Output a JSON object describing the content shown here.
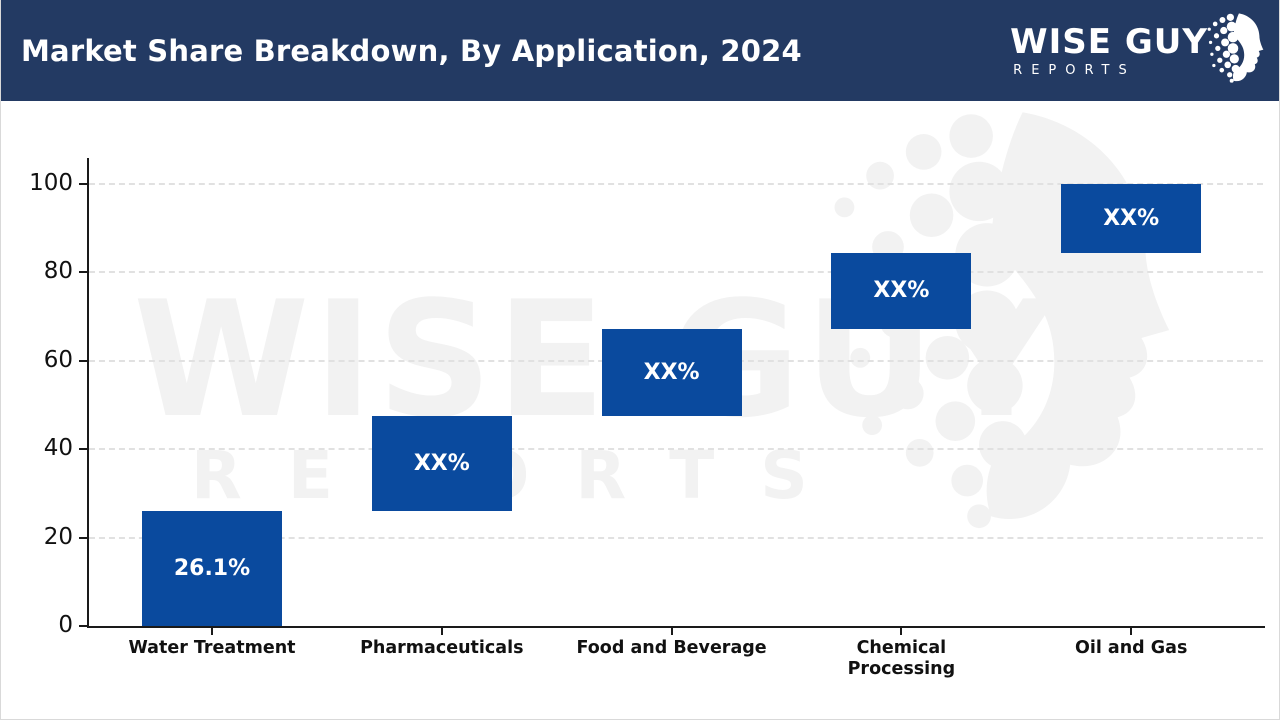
{
  "header": {
    "title": "Market Share Breakdown, By Application, 2024",
    "logo": {
      "line1": "WISE GUY",
      "line2": "REPORTS"
    }
  },
  "watermark": {
    "line1": "WISE GUY",
    "line2": "REPORTS"
  },
  "chart_data": {
    "type": "bar",
    "subtype": "waterfall-floating-segments",
    "title": "Market Share Breakdown, By Application, 2024",
    "categories": [
      "Water Treatment",
      "Pharmaceuticals",
      "Food and Beverage",
      "Chemical Processing",
      "Oil and Gas"
    ],
    "segments": [
      {
        "category": "Water Treatment",
        "start": 0,
        "end": 26.1,
        "label": "26.1%",
        "wrap": false
      },
      {
        "category": "Pharmaceuticals",
        "start": 26.1,
        "end": 47.5,
        "label": "XX%",
        "wrap": false
      },
      {
        "category": "Food and Beverage",
        "start": 47.5,
        "end": 67.3,
        "label": "XX%",
        "wrap": false
      },
      {
        "category": "Chemical Processing",
        "start": 67.3,
        "end": 84.5,
        "label": "XX%",
        "wrap": true
      },
      {
        "category": "Oil and Gas",
        "start": 84.5,
        "end": 100,
        "label": "XX%",
        "wrap": false
      }
    ],
    "xlabel": "",
    "ylabel": "",
    "ylim": [
      0,
      100
    ],
    "yticks": [
      0,
      20,
      40,
      60,
      80,
      100
    ],
    "grid": "horizontal-dashed",
    "legend": null,
    "bar_color": "#0A4A9E",
    "bar_label_color": "#FFFFFF",
    "axis_color": "#1a1a1a",
    "gridline_color": "#e1e1e1",
    "header_color": "#233A63",
    "watermark_color": "#f2f2f2"
  }
}
